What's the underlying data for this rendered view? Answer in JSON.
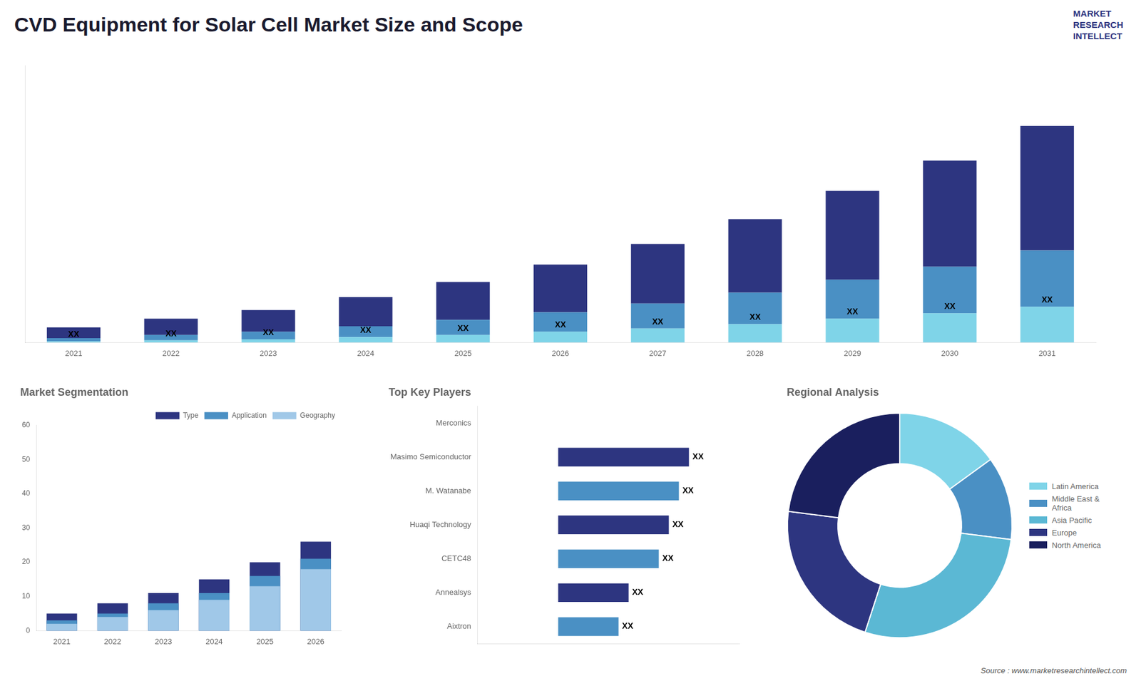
{
  "chart_data": [
    {
      "type": "bar",
      "title": "CVD Equipment for Solar Cell Market Size and Scope",
      "annotations": [
        "Source : www.marketresearchintellect.com",
        "MARKET\nRESEARCH\nINTELLECT"
      ],
      "categories": [
        "2021",
        "2022",
        "2023",
        "2024",
        "2025",
        "2026",
        "2027",
        "2028",
        "2029",
        "2030",
        "2031"
      ],
      "stacked": true,
      "series": [
        {
          "color": "#2d3580",
          "values": [
            1,
            1.5,
            2,
            2.7,
            3.5,
            4.4,
            5.5,
            6.8,
            8.2,
            9.8,
            11.5
          ]
        },
        {
          "color": "#4a90c4",
          "values": [
            0.3,
            0.5,
            0.7,
            1.0,
            1.4,
            1.8,
            2.3,
            2.9,
            3.6,
            4.3,
            5.2
          ]
        },
        {
          "color": "#7fd4e8",
          "values": [
            0.1,
            0.2,
            0.3,
            0.5,
            0.7,
            1.0,
            1.3,
            1.7,
            2.2,
            2.7,
            3.3
          ],
          "value_labels": [
            "XX",
            "XX",
            "XX",
            "XX",
            "XX",
            "XX",
            "XX",
            "XX",
            "XX",
            "XX",
            "XX"
          ]
        }
      ],
      "ylim": [
        0,
        25.6
      ],
      "tick_labels": "x",
      "grid": false
    },
    {
      "type": "bar",
      "title": "Market Segmentation",
      "categories": [
        "2021",
        "2022",
        "2023",
        "2024",
        "2025",
        "2026"
      ],
      "stacked": false,
      "series": [
        {
          "name": "Type",
          "color": "#2d3580",
          "values": [
            5,
            8,
            11,
            15,
            20,
            26
          ]
        },
        {
          "name": "Application",
          "color": "#4a90c4",
          "values": [
            3,
            5,
            8,
            11,
            16,
            21
          ]
        },
        {
          "name": "Geography",
          "color": "#a0c8e8",
          "values": [
            2,
            4,
            6,
            9,
            13,
            18
          ]
        }
      ],
      "ylim": [
        0,
        60
      ],
      "yticks": [
        0,
        10,
        20,
        30,
        40,
        50,
        60
      ],
      "legend": "upper right",
      "grid": false
    },
    {
      "type": "bar",
      "orientation": "horizontal",
      "title": "Top Key Players",
      "categories": [
        "Merconics",
        "Masimo Semiconductor",
        "M. Watanabe",
        "Huaqi Technology",
        "CETC48",
        "Annealsys",
        "Aixtron"
      ],
      "values": [
        0,
        6.5,
        6.0,
        5.5,
        5.0,
        3.5,
        3.0
      ],
      "colors": [
        "#ffffff",
        "#2d3580",
        "#4a90c4",
        "#2d3580",
        "#4a90c4",
        "#2d3580",
        "#4a90c4"
      ],
      "value_labels": [
        null,
        "XX",
        "XX",
        "XX",
        "XX",
        "XX",
        "XX"
      ],
      "xlim": [
        -4,
        9
      ],
      "tick_labels": "y",
      "grid": false
    },
    {
      "type": "doughnut",
      "title": "Regional Analysis",
      "categories": [
        "Latin America",
        "Middle East &\nAfrica",
        "Asia Pacific",
        "Europe",
        "North America"
      ],
      "values": [
        0.15,
        0.12,
        0.28,
        0.22,
        0.23
      ],
      "colors": [
        "#7fd4e8",
        "#4a90c4",
        "#5bb8d4",
        "#2d3580",
        "#1a1f5e"
      ],
      "legend": "right"
    }
  ]
}
